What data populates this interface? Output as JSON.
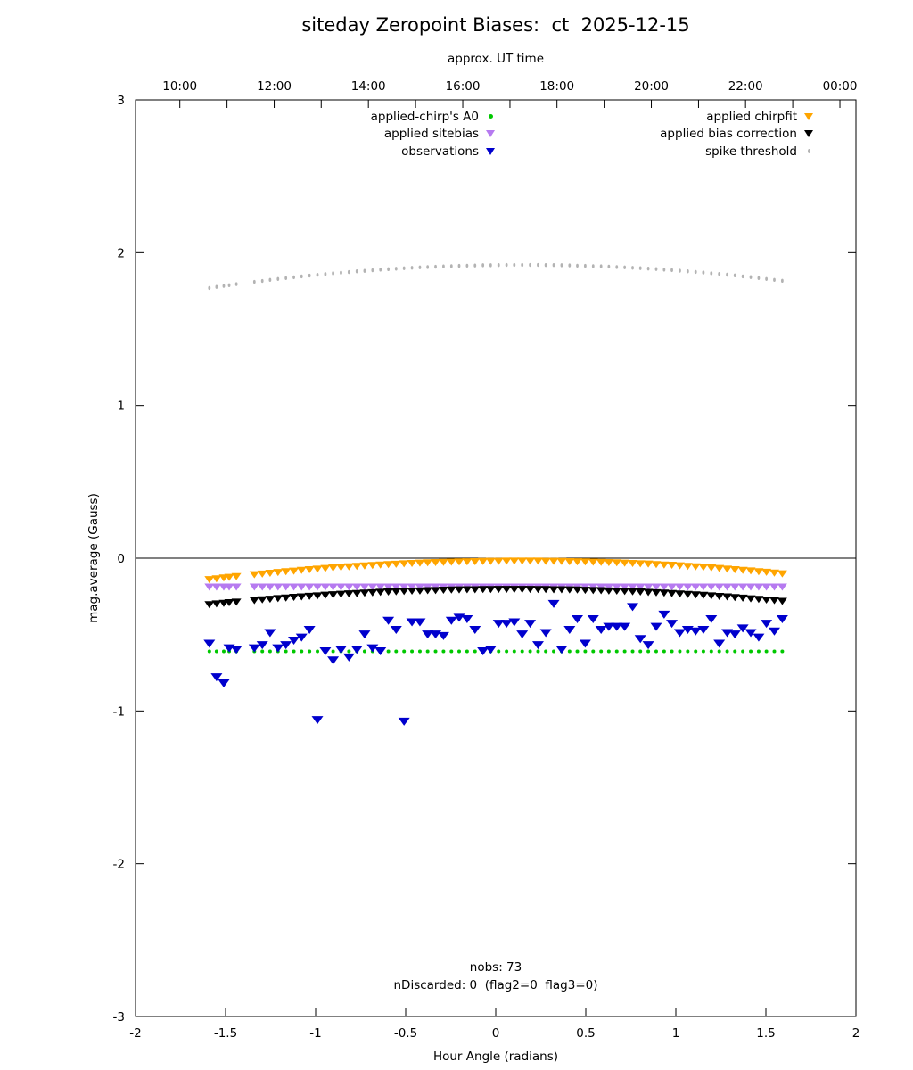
{
  "title": "siteday Zeropoint Biases:  ct  2025-12-15",
  "top_axis": {
    "label": "approx. UT time",
    "ticks": [
      {
        "label": "10:00",
        "ha": -1.754
      },
      {
        "label": "",
        "ha": -1.492
      },
      {
        "label": "12:00",
        "ha": -1.23
      },
      {
        "label": "",
        "ha": -0.969
      },
      {
        "label": "14:00",
        "ha": -0.707
      },
      {
        "label": "",
        "ha": -0.445
      },
      {
        "label": "16:00",
        "ha": -0.183
      },
      {
        "label": "",
        "ha": 0.079
      },
      {
        "label": "18:00",
        "ha": 0.34
      },
      {
        "label": "",
        "ha": 0.602
      },
      {
        "label": "20:00",
        "ha": 0.864
      },
      {
        "label": "",
        "ha": 1.126
      },
      {
        "label": "22:00",
        "ha": 1.387
      },
      {
        "label": "",
        "ha": 1.649
      },
      {
        "label": "00:00",
        "ha": 1.911
      }
    ]
  },
  "bottom_axis": {
    "label": "Hour Angle (radians)",
    "ticks": [
      {
        "value": -2,
        "label": "-2"
      },
      {
        "value": -1.5,
        "label": "-1.5"
      },
      {
        "value": -1,
        "label": "-1"
      },
      {
        "value": -0.5,
        "label": "-0.5"
      },
      {
        "value": 0,
        "label": "0"
      },
      {
        "value": 0.5,
        "label": "0.5"
      },
      {
        "value": 1,
        "label": "1"
      },
      {
        "value": 1.5,
        "label": "1.5"
      },
      {
        "value": 2,
        "label": "2"
      }
    ]
  },
  "left_axis": {
    "label": "mag.average (Gauss)",
    "ticks": [
      {
        "value": 3,
        "label": "3"
      },
      {
        "value": 2,
        "label": "2"
      },
      {
        "value": 1,
        "label": "1"
      },
      {
        "value": 0,
        "label": "0"
      },
      {
        "value": -1,
        "label": "-1"
      },
      {
        "value": -2,
        "label": "-2"
      },
      {
        "value": -3,
        "label": "-3"
      }
    ]
  },
  "annotations": {
    "nobs": "nobs: 73",
    "ndiscarded": "nDiscarded: 0  (flag2=0  flag3=0)"
  },
  "legend": {
    "position": "top-inside-two-columns",
    "columns": [
      {
        "entries": [
          {
            "id": "a0",
            "label": "applied-chirp's A0",
            "marker": "dot",
            "color": "#00c800"
          },
          {
            "id": "sitebias",
            "label": "applied sitebias",
            "marker": "triangle-down",
            "color": "#b67af0"
          },
          {
            "id": "observations",
            "label": "observations",
            "marker": "triangle-down",
            "color": "#0000cd"
          }
        ]
      },
      {
        "entries": [
          {
            "id": "chirpfit",
            "label": "applied chirpfit",
            "marker": "triangle-down",
            "color": "#ffa500"
          },
          {
            "id": "bias-correction",
            "label": "applied bias correction",
            "marker": "triangle-down",
            "color": "#000000"
          },
          {
            "id": "spike-threshold",
            "label": "spike threshold",
            "marker": "small-dot",
            "color": "#b3b3b3"
          }
        ]
      }
    ]
  },
  "chart_data": {
    "type": "scatter",
    "title": "siteday Zeropoint Biases:  ct  2025-12-15",
    "xlabel": "Hour Angle (radians)",
    "x2label": "approx. UT time",
    "ylabel": "mag.average (Gauss)",
    "xlim": [
      -2,
      2
    ],
    "ylim": [
      -3,
      3
    ],
    "grid": false,
    "zero_line": true,
    "nobs": 73,
    "x": [
      -1.59,
      -1.55,
      -1.51,
      -1.48,
      -1.44,
      -1.34,
      -1.296,
      -1.253,
      -1.209,
      -1.165,
      -1.121,
      -1.078,
      -1.034,
      -0.99,
      -0.946,
      -0.903,
      -0.859,
      -0.815,
      -0.771,
      -0.728,
      -0.684,
      -0.64,
      -0.596,
      -0.553,
      -0.509,
      -0.465,
      -0.421,
      -0.378,
      -0.334,
      -0.29,
      -0.246,
      -0.203,
      -0.159,
      -0.115,
      -0.071,
      -0.028,
      0.016,
      0.06,
      0.103,
      0.147,
      0.191,
      0.235,
      0.278,
      0.322,
      0.366,
      0.41,
      0.453,
      0.497,
      0.541,
      0.585,
      0.628,
      0.672,
      0.716,
      0.76,
      0.803,
      0.847,
      0.891,
      0.935,
      0.978,
      1.022,
      1.066,
      1.11,
      1.153,
      1.197,
      1.241,
      1.285,
      1.328,
      1.372,
      1.416,
      1.46,
      1.503,
      1.547,
      1.591
    ],
    "series": [
      {
        "id": "a0",
        "name": "applied-chirp's A0",
        "marker": "dot",
        "color": "#00c800",
        "y_const": -0.61
      },
      {
        "id": "sitebias",
        "name": "applied sitebias",
        "marker": "triangle-down",
        "color": "#b67af0",
        "y_const": -0.19
      },
      {
        "id": "observations",
        "name": "observations",
        "marker": "triangle-down",
        "color": "#0000cd",
        "size": 13,
        "height": 9,
        "y": [
          -0.56,
          -0.78,
          -0.82,
          -0.59,
          -0.6,
          -0.59,
          -0.57,
          -0.49,
          -0.59,
          -0.57,
          -0.54,
          -0.52,
          -0.47,
          -1.06,
          -0.61,
          -0.67,
          -0.6,
          -0.65,
          -0.6,
          -0.5,
          -0.59,
          -0.61,
          -0.41,
          -0.47,
          -1.07,
          -0.42,
          -0.42,
          -0.5,
          -0.5,
          -0.51,
          -0.41,
          -0.39,
          -0.4,
          -0.47,
          -0.61,
          -0.6,
          -0.43,
          -0.43,
          -0.42,
          -0.5,
          -0.43,
          -0.57,
          -0.49,
          -0.3,
          -0.6,
          -0.47,
          -0.4,
          -0.56,
          -0.4,
          -0.47,
          -0.45,
          -0.45,
          -0.45,
          -0.32,
          -0.53,
          -0.57,
          -0.45,
          -0.37,
          -0.43,
          -0.49,
          -0.47,
          -0.48,
          -0.47,
          -0.4,
          -0.56,
          -0.49,
          -0.5,
          -0.46,
          -0.49,
          -0.52,
          -0.43,
          -0.48,
          -0.4
        ]
      },
      {
        "id": "chirpfit",
        "name": "applied chirpfit",
        "marker": "triangle-down",
        "color": "#ffa500",
        "size": 11,
        "height": 8,
        "y": [
          -0.141,
          -0.136,
          -0.13,
          -0.126,
          -0.121,
          -0.109,
          -0.104,
          -0.099,
          -0.094,
          -0.089,
          -0.085,
          -0.08,
          -0.076,
          -0.072,
          -0.068,
          -0.064,
          -0.061,
          -0.057,
          -0.054,
          -0.051,
          -0.048,
          -0.045,
          -0.042,
          -0.04,
          -0.037,
          -0.035,
          -0.033,
          -0.031,
          -0.029,
          -0.028,
          -0.026,
          -0.025,
          -0.024,
          -0.023,
          -0.022,
          -0.021,
          -0.021,
          -0.02,
          -0.02,
          -0.02,
          -0.02,
          -0.02,
          -0.021,
          -0.021,
          -0.022,
          -0.023,
          -0.024,
          -0.025,
          -0.026,
          -0.028,
          -0.029,
          -0.031,
          -0.033,
          -0.035,
          -0.037,
          -0.039,
          -0.042,
          -0.045,
          -0.047,
          -0.05,
          -0.054,
          -0.057,
          -0.06,
          -0.064,
          -0.068,
          -0.072,
          -0.076,
          -0.08,
          -0.084,
          -0.089,
          -0.093,
          -0.098,
          -0.103
        ]
      },
      {
        "id": "bias-correction",
        "name": "applied bias correction",
        "marker": "triangle-down",
        "color": "#000000",
        "size": 11,
        "height": 8,
        "y": [
          -0.305,
          -0.3,
          -0.296,
          -0.292,
          -0.288,
          -0.278,
          -0.273,
          -0.269,
          -0.265,
          -0.261,
          -0.257,
          -0.254,
          -0.25,
          -0.247,
          -0.243,
          -0.24,
          -0.237,
          -0.234,
          -0.232,
          -0.229,
          -0.227,
          -0.224,
          -0.222,
          -0.22,
          -0.218,
          -0.216,
          -0.215,
          -0.213,
          -0.212,
          -0.21,
          -0.209,
          -0.208,
          -0.207,
          -0.207,
          -0.206,
          -0.206,
          -0.205,
          -0.205,
          -0.205,
          -0.205,
          -0.205,
          -0.206,
          -0.206,
          -0.207,
          -0.207,
          -0.208,
          -0.209,
          -0.211,
          -0.212,
          -0.213,
          -0.215,
          -0.216,
          -0.218,
          -0.22,
          -0.222,
          -0.225,
          -0.227,
          -0.229,
          -0.232,
          -0.235,
          -0.238,
          -0.241,
          -0.244,
          -0.247,
          -0.251,
          -0.254,
          -0.258,
          -0.262,
          -0.266,
          -0.27,
          -0.274,
          -0.278,
          -0.283
        ]
      },
      {
        "id": "spike-threshold",
        "name": "spike threshold",
        "marker": "small-dot",
        "color": "#b3b3b3",
        "y": [
          1.769,
          1.776,
          1.782,
          1.787,
          1.794,
          1.809,
          1.815,
          1.822,
          1.828,
          1.834,
          1.839,
          1.845,
          1.85,
          1.855,
          1.86,
          1.865,
          1.869,
          1.873,
          1.878,
          1.881,
          1.885,
          1.889,
          1.892,
          1.895,
          1.898,
          1.901,
          1.904,
          1.906,
          1.908,
          1.91,
          1.912,
          1.914,
          1.915,
          1.916,
          1.918,
          1.918,
          1.919,
          1.92,
          1.92,
          1.92,
          1.92,
          1.92,
          1.919,
          1.919,
          1.918,
          1.917,
          1.915,
          1.914,
          1.912,
          1.911,
          1.909,
          1.906,
          1.904,
          1.901,
          1.899,
          1.896,
          1.893,
          1.889,
          1.886,
          1.882,
          1.878,
          1.874,
          1.87,
          1.865,
          1.861,
          1.856,
          1.851,
          1.845,
          1.84,
          1.834,
          1.828,
          1.822,
          1.816
        ]
      }
    ]
  }
}
